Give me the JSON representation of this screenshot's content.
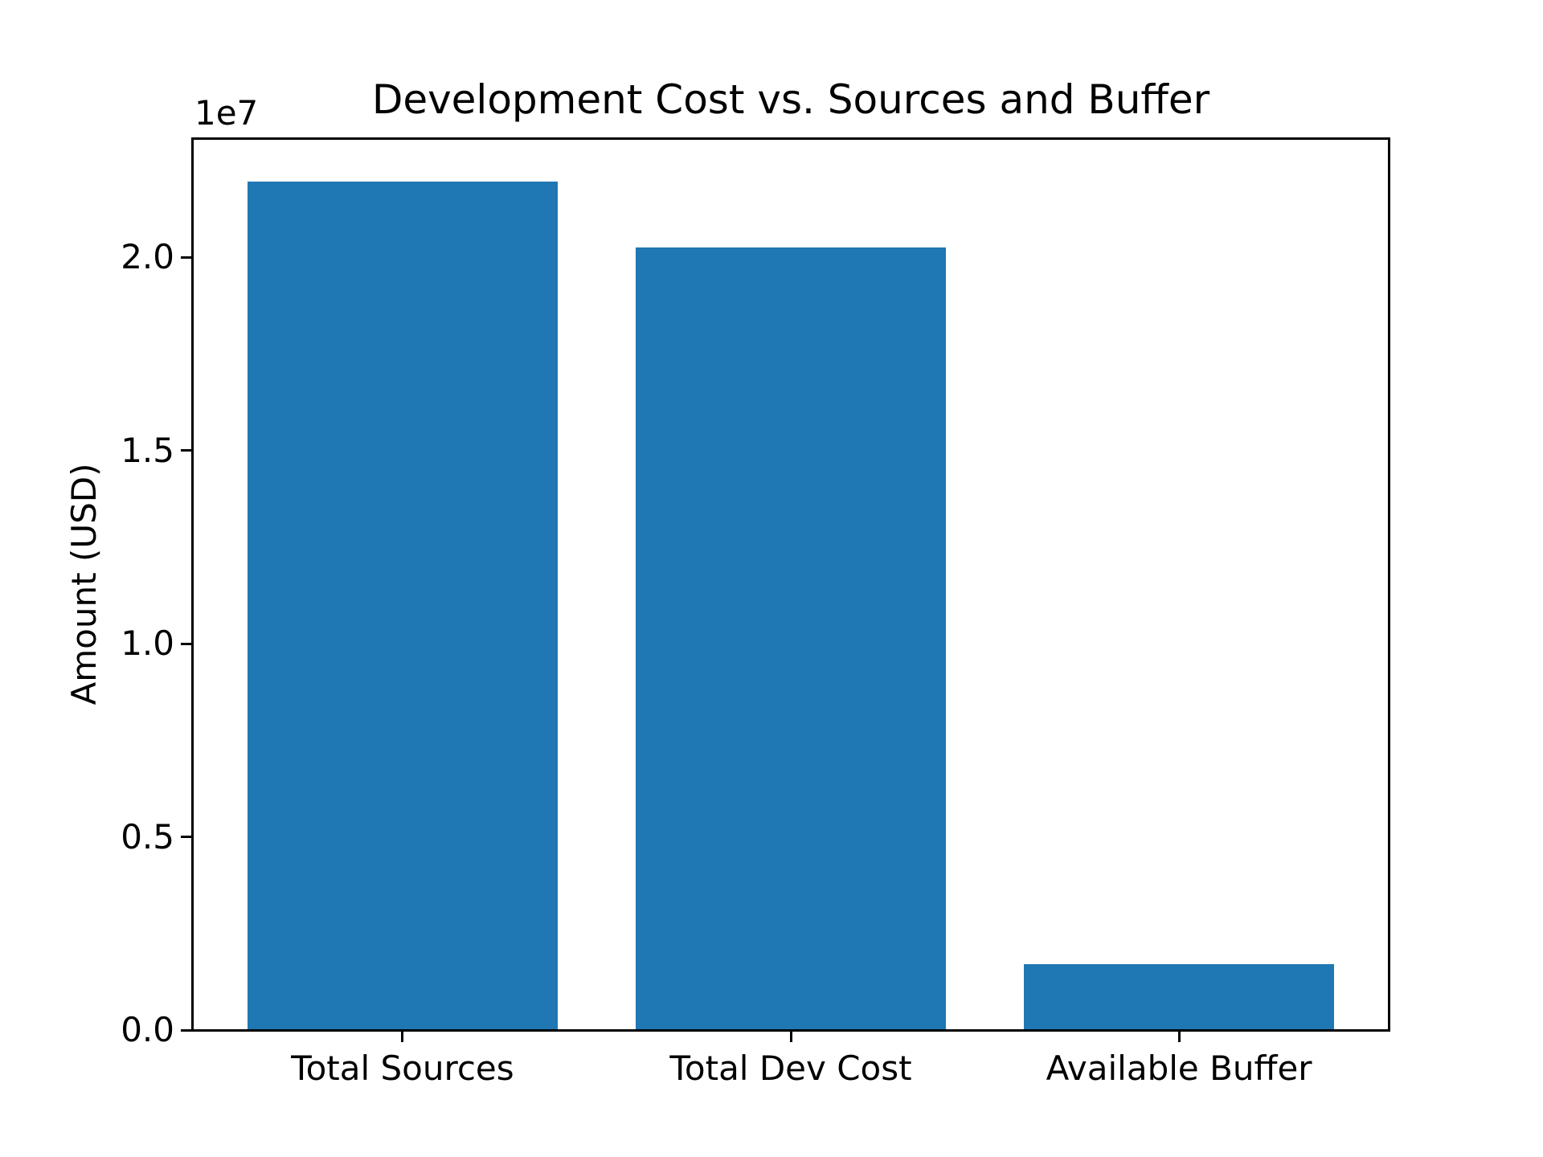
{
  "chart_data": {
    "type": "bar",
    "title": "Development Cost vs. Sources and Buffer",
    "xlabel": "",
    "ylabel": "Amount (USD)",
    "y_offset_text": "1e7",
    "categories": [
      "Total Sources",
      "Total Dev Cost",
      "Available Buffer"
    ],
    "values": [
      21960000,
      20250000,
      1710000
    ],
    "bar_color": "#1f77b4",
    "ylim": [
      0,
      23058000
    ],
    "xlim": [
      -0.54,
      2.54
    ],
    "bar_width": 0.8,
    "yticks": [
      0,
      5000000,
      10000000,
      15000000,
      20000000
    ],
    "ytick_labels": [
      "0.0",
      "0.5",
      "1.0",
      "1.5",
      "2.0"
    ],
    "grid": false,
    "legend": false,
    "text_color": "#000000",
    "spine_color": "#000000"
  }
}
